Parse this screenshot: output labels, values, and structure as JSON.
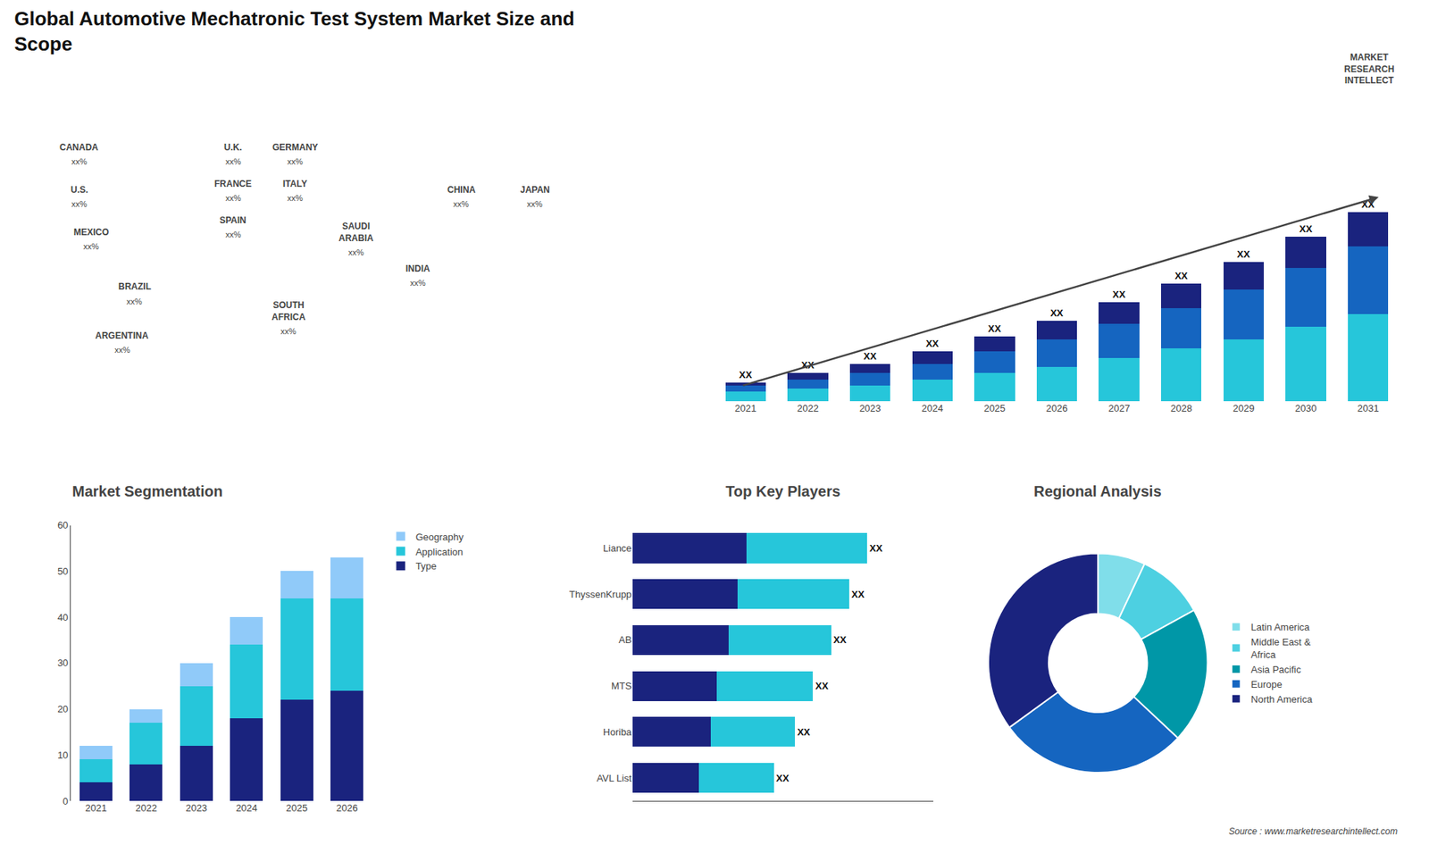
{
  "chart_data": [
    {
      "type": "map",
      "annotations": [
        {
          "text": "CANADA",
          "label": "xx%"
        },
        {
          "text": "U.S.",
          "label": "xx%"
        },
        {
          "text": "MEXICO",
          "label": "xx%"
        },
        {
          "text": "BRAZIL",
          "label": "xx%"
        },
        {
          "text": "ARGENTINA",
          "label": "xx%"
        },
        {
          "text": "U.K.",
          "label": "xx%"
        },
        {
          "text": "FRANCE",
          "label": "xx%"
        },
        {
          "text": "SPAIN",
          "label": "xx%"
        },
        {
          "text": "GERMANY",
          "label": "xx%"
        },
        {
          "text": "ITALY",
          "label": "xx%"
        },
        {
          "text": "SAUDI\nARABIA",
          "label": "xx%"
        },
        {
          "text": "SOUTH\nAFRICA",
          "label": "xx%"
        },
        {
          "text": "CHINA",
          "label": "xx%"
        },
        {
          "text": "JAPAN",
          "label": "xx%"
        },
        {
          "text": "INDIA",
          "label": "xx%"
        }
      ]
    },
    {
      "type": "bar",
      "title": "Global Automotive Mechatronic Test System Market Size and\nScope",
      "categories": [
        "2021",
        "2022",
        "2023",
        "2024",
        "2025",
        "2026",
        "2027",
        "2028",
        "2029",
        "2030",
        "2031"
      ],
      "series": [
        {
          "color": "#26c6da",
          "values": [
            3,
            4,
            5,
            7,
            9,
            11,
            14,
            17,
            20,
            24,
            28
          ]
        },
        {
          "color": "#1565c0",
          "values": [
            2,
            3,
            4,
            5,
            7,
            9,
            11,
            13,
            16,
            19,
            22
          ]
        },
        {
          "color": "#1a237e",
          "values": [
            1,
            2,
            3,
            4,
            5,
            6,
            7,
            8,
            9,
            10,
            11
          ],
          "value_labels": [
            "XX",
            "XX",
            "XX",
            "XX",
            "XX",
            "XX",
            "XX",
            "XX",
            "XX",
            "XX",
            "XX"
          ]
        }
      ],
      "stacked": true,
      "ylim": [
        0,
        82.35
      ],
      "tick_labels": "x",
      "grid": false,
      "annotations": [
        "MARKET\nRESEARCH\nINTELLECT",
        "Source : www.marketresearchintellect.com"
      ]
    },
    {
      "type": "bar",
      "title": "Market Segmentation",
      "categories": [
        "2021",
        "2022",
        "2023",
        "2024",
        "2025",
        "2026"
      ],
      "series": [
        {
          "name": "Type",
          "color": "#1a237e",
          "values": [
            4,
            8,
            12,
            18,
            22,
            24
          ]
        },
        {
          "name": "Application",
          "color": "#26c6da",
          "values": [
            5,
            9,
            13,
            16,
            22,
            20
          ]
        },
        {
          "name": "Geography",
          "color": "#90caf9",
          "values": [
            3,
            3,
            5,
            6,
            6,
            9
          ]
        }
      ],
      "stacked": true,
      "ylim": [
        0,
        60
      ],
      "yticks": [
        0,
        10,
        20,
        30,
        40,
        50,
        60
      ],
      "grid": false,
      "legend": "right"
    },
    {
      "type": "bar",
      "orientation": "horizontal",
      "title": "Top Key Players",
      "categories": [
        "Liance",
        "ThyssenKrupp",
        "AB",
        "MTS",
        "Horiba",
        "AVL List"
      ],
      "series": [
        {
          "color": "#1a237e",
          "values": [
            0.38,
            0.35,
            0.32,
            0.28,
            0.26,
            0.22
          ]
        },
        {
          "color": "#26c6da",
          "values": [
            0.4,
            0.37,
            0.34,
            0.32,
            0.28,
            0.25
          ],
          "value_labels": [
            "XX",
            "XX",
            "XX",
            "XX",
            "XX",
            "XX"
          ]
        }
      ],
      "stacked": true,
      "xlim": [
        0,
        1
      ],
      "tick_labels": "y",
      "grid": false
    },
    {
      "type": "donut",
      "title": "Regional Analysis",
      "categories": [
        "Latin America",
        "Middle East &\nAfrica",
        "Asia Pacific",
        "Europe",
        "North America"
      ],
      "values": [
        7,
        10,
        20,
        28,
        35
      ],
      "colors": [
        "#80deea",
        "#4dd0e1",
        "#0097a7",
        "#1565c0",
        "#1a237e"
      ],
      "legend": "right"
    }
  ]
}
